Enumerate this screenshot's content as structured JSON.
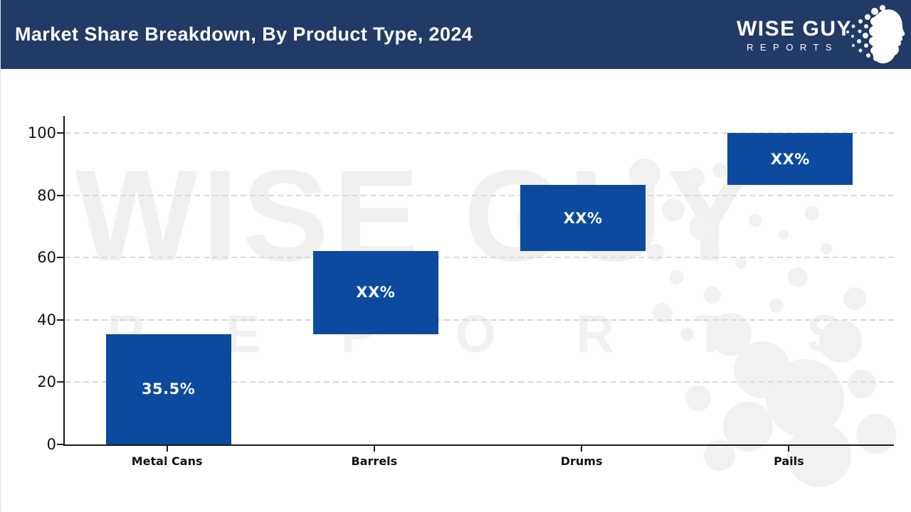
{
  "header": {
    "title": "Market Share Breakdown, By Product Type, 2024",
    "bg_color": "#213a66",
    "logo": {
      "wordmark": "WISE GUY",
      "subtext": "REPORTS"
    }
  },
  "watermark": {
    "wordmark": "WISE GUY",
    "subtext": "R E P O R T S"
  },
  "chart_data": {
    "type": "bar",
    "variant": "waterfall-range",
    "title": "Market Share Breakdown, By Product Type, 2024",
    "categories": [
      "Metal Cans",
      "Barrels",
      "Drums",
      "Pails"
    ],
    "series": [
      {
        "name": "Market share (%)",
        "segments": [
          {
            "category": "Metal Cans",
            "start": 0,
            "end": 35.5,
            "label": "35.5%"
          },
          {
            "category": "Barrels",
            "start": 35.5,
            "end": 62,
            "label": "XX%"
          },
          {
            "category": "Drums",
            "start": 62,
            "end": 83.3,
            "label": "XX%"
          },
          {
            "category": "Pails",
            "start": 83.3,
            "end": 100,
            "label": "XX%"
          }
        ]
      }
    ],
    "xlabel": "",
    "ylabel": "",
    "ylim": [
      0,
      100
    ],
    "yticks": [
      0,
      20,
      40,
      60,
      80,
      100
    ],
    "grid": "horizontal-dashed",
    "legend": "none",
    "bar_color": "#0b4a9f",
    "bar_label_color": "#ffffff",
    "axis_color": "#1a1a1a"
  }
}
